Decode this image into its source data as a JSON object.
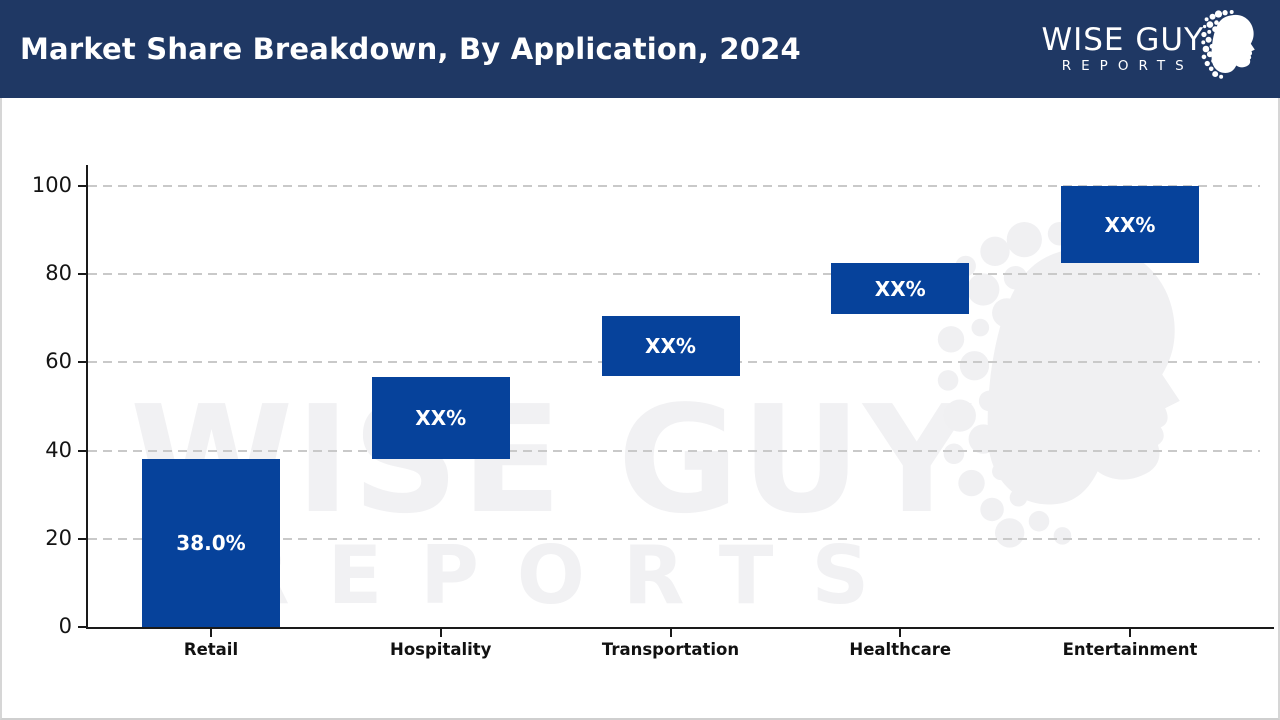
{
  "header": {
    "title": "Market Share Breakdown, By Application, 2024",
    "logo": {
      "line1": "WISE GUY",
      "line2": "REPORTS"
    }
  },
  "watermark": {
    "line1": "WISE GUY",
    "line2": "REPORTS"
  },
  "chart_data": {
    "type": "bar",
    "subtype": "waterfall",
    "title": "Market Share Breakdown, By Application, 2024",
    "categories": [
      "Retail",
      "Hospitality",
      "Transportation",
      "Healthcare",
      "Entertainment"
    ],
    "segments": [
      {
        "category": "Retail",
        "start": 0,
        "end": 38,
        "label": "38.0%"
      },
      {
        "category": "Hospitality",
        "start": 38,
        "end": 56.6,
        "label": "XX%"
      },
      {
        "category": "Transportation",
        "start": 57,
        "end": 70.5,
        "label": "XX%"
      },
      {
        "category": "Healthcare",
        "start": 71,
        "end": 82.5,
        "label": "XX%"
      },
      {
        "category": "Entertainment",
        "start": 82.5,
        "end": 100,
        "label": "XX%"
      }
    ],
    "ylim": [
      0,
      100
    ],
    "yticks": [
      0,
      20,
      40,
      60,
      80,
      100
    ],
    "xlabel": "",
    "ylabel": "",
    "grid": "horizontal-dashed",
    "legend": "none",
    "bar_color": "#06429b",
    "bar_label_color": "#ffffff"
  },
  "colors": {
    "header_bg": "#1f3864",
    "bar": "#06429b",
    "grid": "#c9c9c9",
    "axis": "#1a1a1a",
    "watermark": "#f1f1f3",
    "border": "#d6d6d6"
  }
}
